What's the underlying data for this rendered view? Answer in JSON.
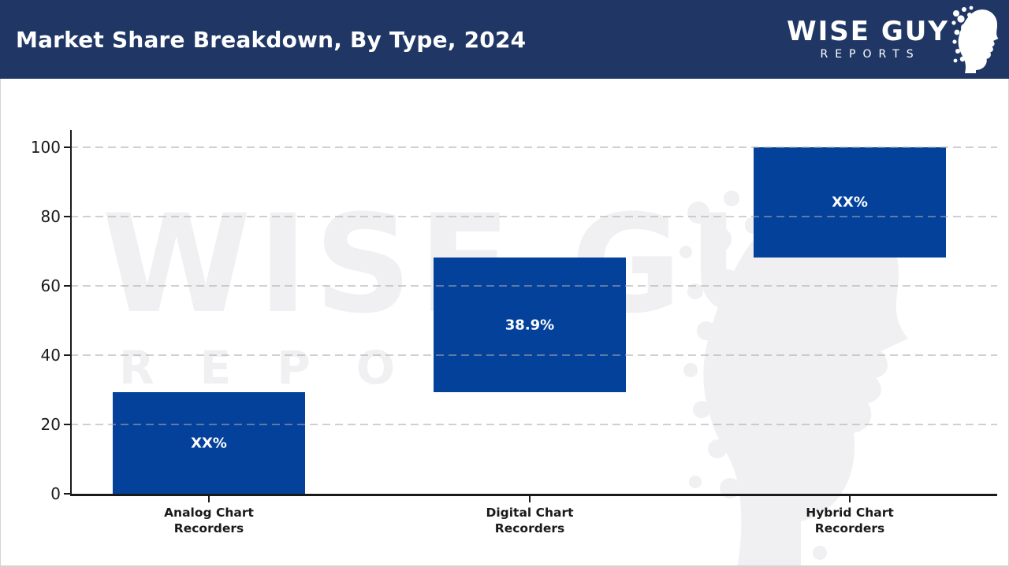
{
  "header": {
    "title": "Market Share Breakdown, By Type, 2024",
    "logo": {
      "wordmark": "WISE GUY",
      "sub": "REPORTS",
      "icon": "dotted-face-profile"
    }
  },
  "watermark": {
    "wordmark": "WISE GUY",
    "sub": "REPORTS",
    "icon": "dotted-face-profile"
  },
  "chart_data": {
    "type": "bar",
    "subtype": "waterfall",
    "title": "Market Share Breakdown, By Type, 2024",
    "categories": [
      {
        "line1": "Analog Chart",
        "line2": "Recorders"
      },
      {
        "line1": "Digital Chart",
        "line2": "Recorders"
      },
      {
        "line1": "Hybrid Chart",
        "line2": "Recorders"
      }
    ],
    "segments": [
      {
        "name": "Analog Chart Recorders",
        "start": 0,
        "end": 29.3,
        "value_label": "XX%"
      },
      {
        "name": "Digital Chart Recorders",
        "start": 29.3,
        "end": 68.2,
        "value_label": "38.9%"
      },
      {
        "name": "Hybrid Chart Recorders",
        "start": 68.2,
        "end": 100,
        "value_label": "XX%"
      }
    ],
    "y_ticks": [
      0,
      20,
      40,
      60,
      80,
      100
    ],
    "ylim": [
      0,
      100
    ],
    "grid": "horizontal-dashed",
    "legend": "none",
    "colors": {
      "bar": "#04419A",
      "bar_label": "#ffffff",
      "axis": "#1a1a1a",
      "tick_label": "#1a1a1a",
      "gridline": "#dcdcdc"
    }
  },
  "theme": {
    "header_bg": "#203765",
    "header_text": "#ffffff",
    "canvas_bg": "#ffffff",
    "watermark_color": "#f0f0f2",
    "frame_border": "#d4d4d4"
  }
}
